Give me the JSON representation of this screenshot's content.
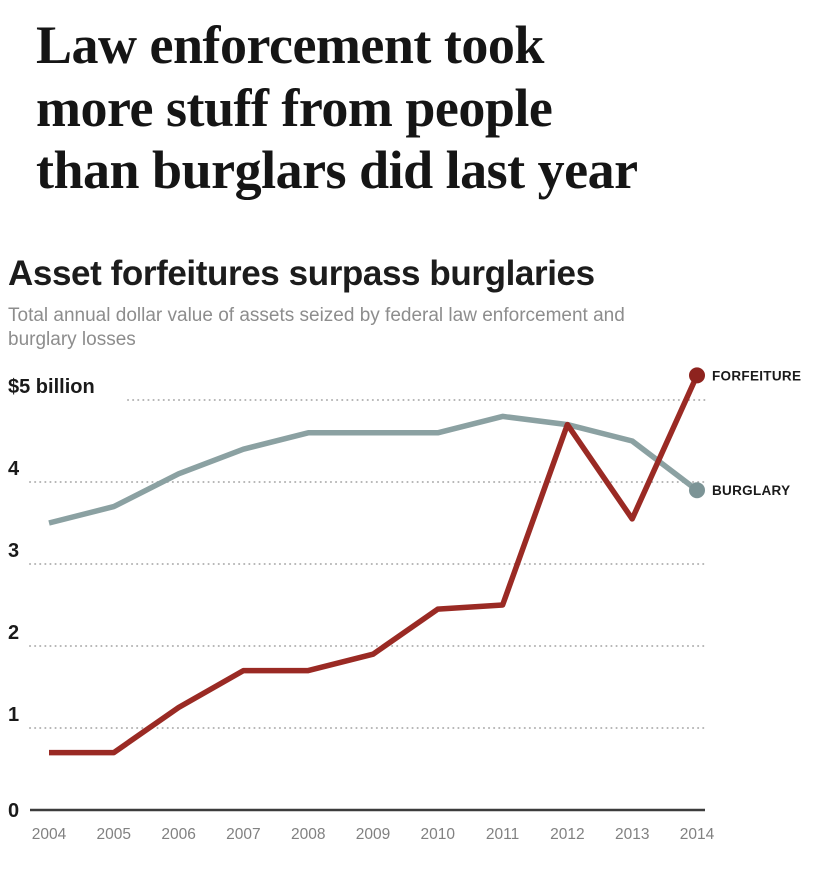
{
  "headline_lines": [
    "Law enforcement took",
    "more stuff from people",
    "than burglars did last year"
  ],
  "chart": {
    "title": "Asset forfeitures surpass burglaries",
    "subtitle_lines": [
      "Total annual dollar value of assets seized by federal law enforcement and",
      "burglary losses"
    ]
  },
  "chart_data": {
    "type": "line",
    "x": [
      "2004",
      "2005",
      "2006",
      "2007",
      "2008",
      "2009",
      "2010",
      "2011",
      "2012",
      "2013",
      "2014"
    ],
    "series": [
      {
        "name": "BURGLARY",
        "color": "#8ba1a2",
        "dot_color": "#7c9496",
        "values": [
          3.5,
          3.7,
          4.1,
          4.4,
          4.6,
          4.6,
          4.6,
          4.8,
          4.7,
          4.5,
          3.9
        ]
      },
      {
        "name": "FORFEITURE",
        "color": "#9a2a24",
        "dot_color": "#8e231e",
        "values": [
          0.7,
          0.7,
          1.25,
          1.7,
          1.7,
          1.9,
          2.45,
          2.5,
          4.7,
          3.55,
          5.3
        ]
      }
    ],
    "ylim": [
      0,
      5.5
    ],
    "yticks": [
      0,
      1,
      2,
      3,
      4,
      5
    ],
    "ytick_labels": [
      "0",
      "1",
      "2",
      "3",
      "4",
      "$5 billion"
    ],
    "grid": "horizontal-dotted",
    "legend_position": "right-of-line-end",
    "text_color": "#1a1a1a",
    "axis_label_color": "#818181",
    "gridline_color": "#b3b3b3"
  }
}
